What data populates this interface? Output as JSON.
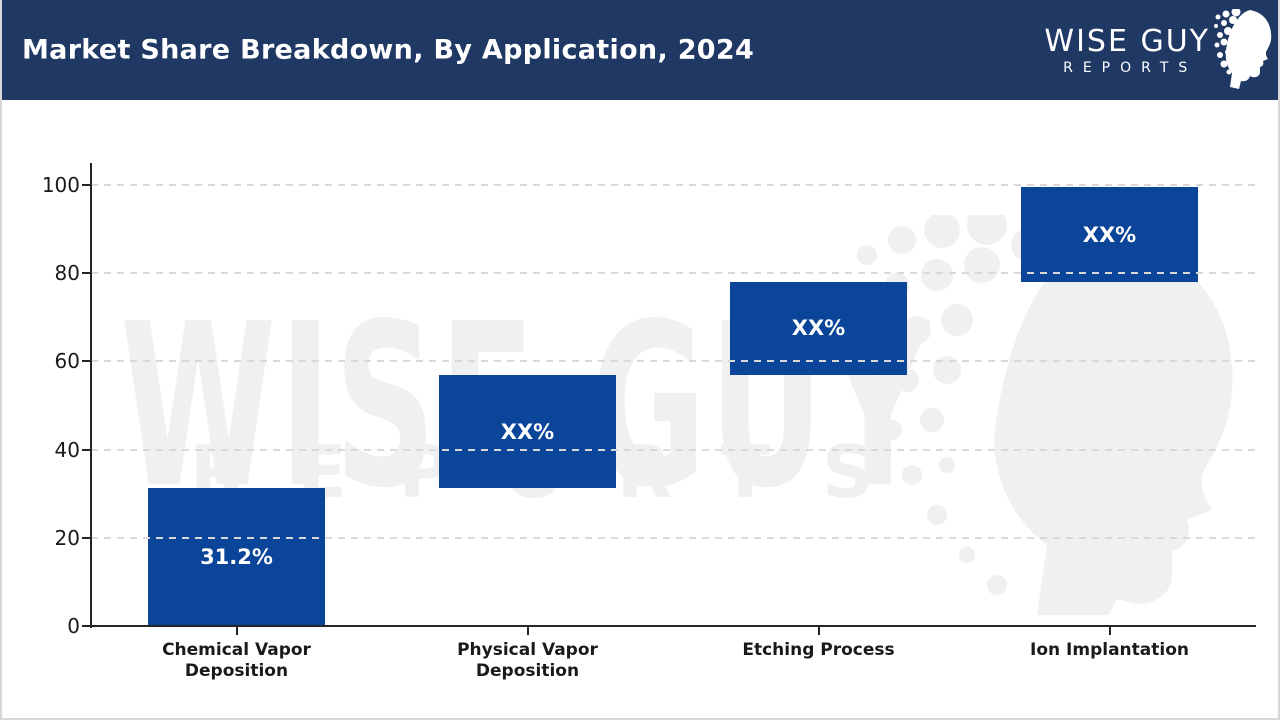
{
  "header": {
    "title": "Market Share Breakdown, By Application, 2024",
    "logo": {
      "wordmark": "WISE GUY",
      "subtitle": "REPORTS"
    }
  },
  "watermark": {
    "wordmark": "WISE GUY",
    "subtitle": "REPORTS"
  },
  "chart_data": {
    "type": "bar",
    "subtype": "waterfall",
    "title": "Market Share Breakdown, By Application, 2024",
    "categories": [
      "Chemical Vapor\nDeposition",
      "Physical Vapor\nDeposition",
      "Etching Process",
      "Ion Implantation"
    ],
    "segments": [
      {
        "category": "Chemical Vapor\nDeposition",
        "start": 0,
        "end": 31.2,
        "label": "31.2%"
      },
      {
        "category": "Physical Vapor\nDeposition",
        "start": 31.2,
        "end": 57,
        "label": "XX%"
      },
      {
        "category": "Etching Process",
        "start": 57,
        "end": 78,
        "label": "XX%"
      },
      {
        "category": "Ion Implantation",
        "start": 78,
        "end": 99.5,
        "label": "XX%"
      }
    ],
    "xlabel": "",
    "ylabel": "",
    "yticks": [
      0,
      20,
      40,
      60,
      80,
      100
    ],
    "ylim": [
      0,
      105
    ],
    "grid": true,
    "gridlines_on_top": true,
    "legend": false,
    "colors": {
      "bar": "#0b4599",
      "bar_label": "#ffffff",
      "gridline": "#d9d9d9",
      "axis": "#262626",
      "tick_text": "#1a1a1a"
    }
  },
  "colors": {
    "header_bg": "#1f3864",
    "header_text": "#ffffff",
    "watermark": "#f0f0f1",
    "page_border": "#d8d8d8",
    "background": "#ffffff"
  }
}
